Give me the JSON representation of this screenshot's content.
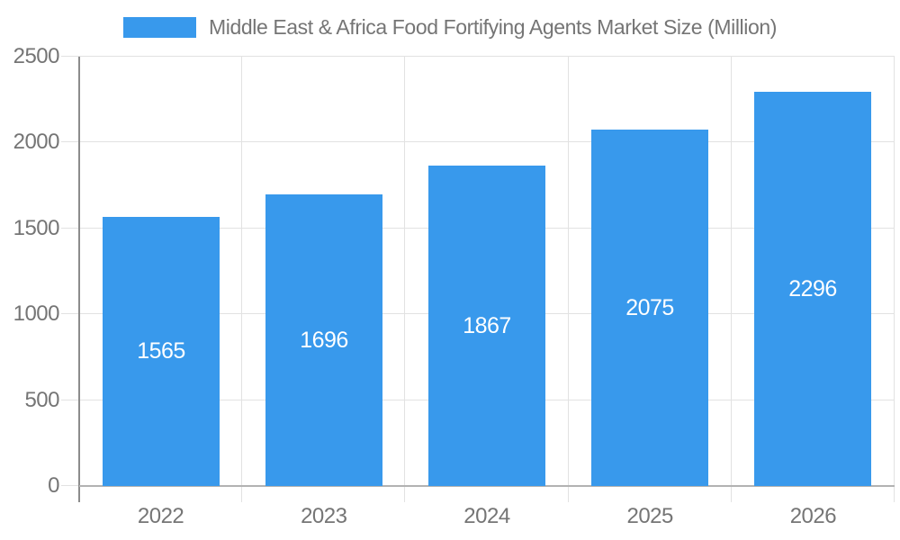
{
  "legend": {
    "label": "Middle East & Africa Food Fortifying Agents Market Size (Million)"
  },
  "chart_data": {
    "type": "bar",
    "title": "Middle East & Africa Food Fortifying Agents Market Size (Million)",
    "categories": [
      "2022",
      "2023",
      "2024",
      "2025",
      "2026"
    ],
    "series": [
      {
        "name": "Middle East & Africa Food Fortifying Agents Market Size (Million)",
        "values": [
          1565,
          1696,
          1867,
          2075,
          2296
        ]
      }
    ],
    "data_labels": [
      "1565",
      "1696",
      "1867",
      "2075",
      "2296"
    ],
    "xlabel": "",
    "ylabel": "",
    "ylim": [
      0,
      2500
    ],
    "yticks": [
      0,
      500,
      1000,
      1500,
      2000,
      2500
    ],
    "grid": true,
    "legend_position": "top"
  },
  "colors": {
    "bar": "#3899EC",
    "grid": "#E2E2E2",
    "axis_x": "#B2B2B2",
    "axis_y": "#8C8C8C",
    "text": "#757575",
    "bar_label": "#FFFFFF"
  }
}
